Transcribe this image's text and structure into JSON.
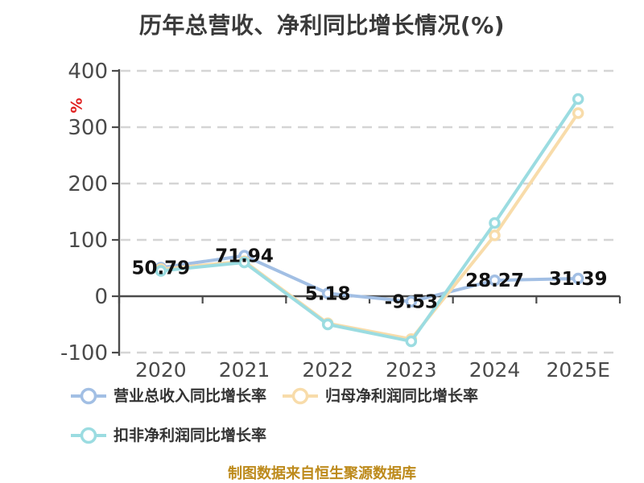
{
  "page": {
    "footer_note": "制图数据来自恒生聚源数据库"
  },
  "colors": {
    "title": "#3a3a3a",
    "axis": "#4b4b4b",
    "gridline": "#d5d5d5",
    "tick_label": "#4a4a4a",
    "data_label": "#111111",
    "legend_text": "#333333",
    "footer": "#bd8a1b",
    "unit_label": "#e02020",
    "marker_fill": "#ffffff"
  },
  "chart_data": {
    "type": "line",
    "title": "历年总营收、净利同比增长情况(%)",
    "unit": "%",
    "categories": [
      "2020",
      "2021",
      "2022",
      "2023",
      "2024",
      "2025E"
    ],
    "series": [
      {
        "name": "营业总收入同比增长率",
        "color": "#a2bfe4",
        "values": [
          50.79,
          71.94,
          5.18,
          -9.53,
          28.27,
          31.39
        ],
        "labels": [
          "50.79",
          "71.94",
          "5.18",
          "-9.53",
          "28.27",
          "31.39"
        ],
        "show_labels": true
      },
      {
        "name": "归母净利润同比增长率",
        "color": "#f8dcaa",
        "values": [
          48,
          62,
          -48,
          -76,
          108,
          325
        ],
        "show_labels": false
      },
      {
        "name": "扣非净利润同比增长率",
        "color": "#9bdce1",
        "values": [
          45,
          60,
          -50,
          -80,
          130,
          350
        ],
        "show_labels": false
      }
    ],
    "ylim": [
      -100,
      400
    ],
    "yticks": [
      400,
      300,
      200,
      100,
      0,
      -100
    ],
    "grid": "dashed-horizontal",
    "legend_position": "bottom-left"
  }
}
